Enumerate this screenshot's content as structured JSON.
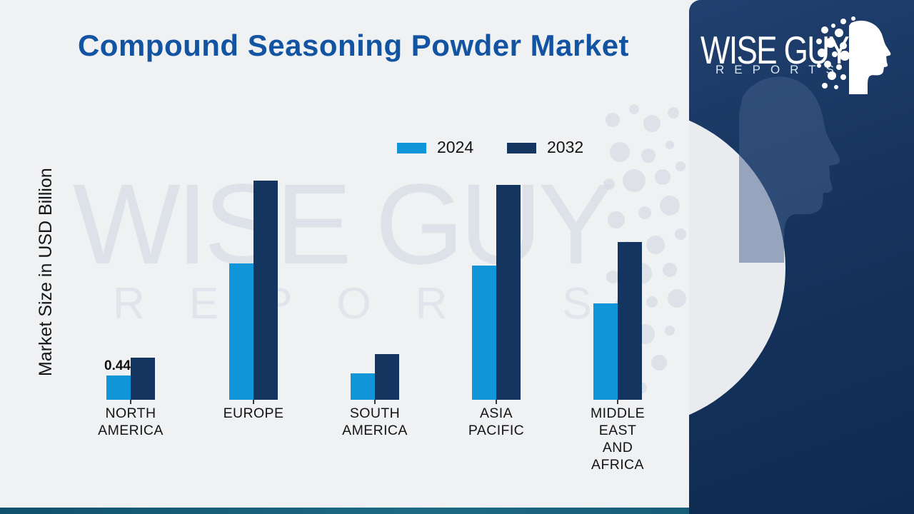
{
  "page": {
    "background": "#f0f1f3"
  },
  "title": {
    "text": "Compound Seasoning Powder Market",
    "color": "#1254a2"
  },
  "y_axis": {
    "label": "Market Size in USD Billion"
  },
  "chart_data": {
    "type": "bar",
    "title": "Compound Seasoning Powder Market",
    "ylabel": "Market Size in USD Billion",
    "unit": "USD Billion",
    "categories": [
      "NORTH AMERICA",
      "EUROPE",
      "SOUTH AMERICA",
      "ASIA PACIFIC",
      "MIDDLE EAST AND AFRICA"
    ],
    "category_lines": [
      [
        "NORTH",
        "AMERICA"
      ],
      [
        "EUROPE"
      ],
      [
        "SOUTH",
        "AMERICA"
      ],
      [
        "ASIA",
        "PACIFIC"
      ],
      [
        "MIDDLE",
        "EAST",
        "AND",
        "AFRICA"
      ]
    ],
    "series": [
      {
        "name": "2024",
        "color": "#1095d8",
        "values": [
          0.44,
          2.47,
          0.48,
          2.43,
          1.75
        ]
      },
      {
        "name": "2032",
        "color": "#14355f",
        "values": [
          0.76,
          3.97,
          0.83,
          3.89,
          2.86
        ]
      }
    ],
    "data_labels": [
      {
        "series": "2024",
        "category": "NORTH AMERICA",
        "text": "0.44"
      }
    ],
    "ylim": [
      0,
      4.6
    ],
    "grid": false,
    "legend_position": "top-right"
  },
  "branding": {
    "logo": {
      "title": "WISE GUY",
      "subtitle": "REPORTS",
      "panel_color": "#16335d",
      "face_icon": "head-profile-dots"
    },
    "watermark": {
      "title": "WISE GUY",
      "subtitle": "REPORTS"
    }
  },
  "footer": {
    "bar_color": "#175d78"
  }
}
